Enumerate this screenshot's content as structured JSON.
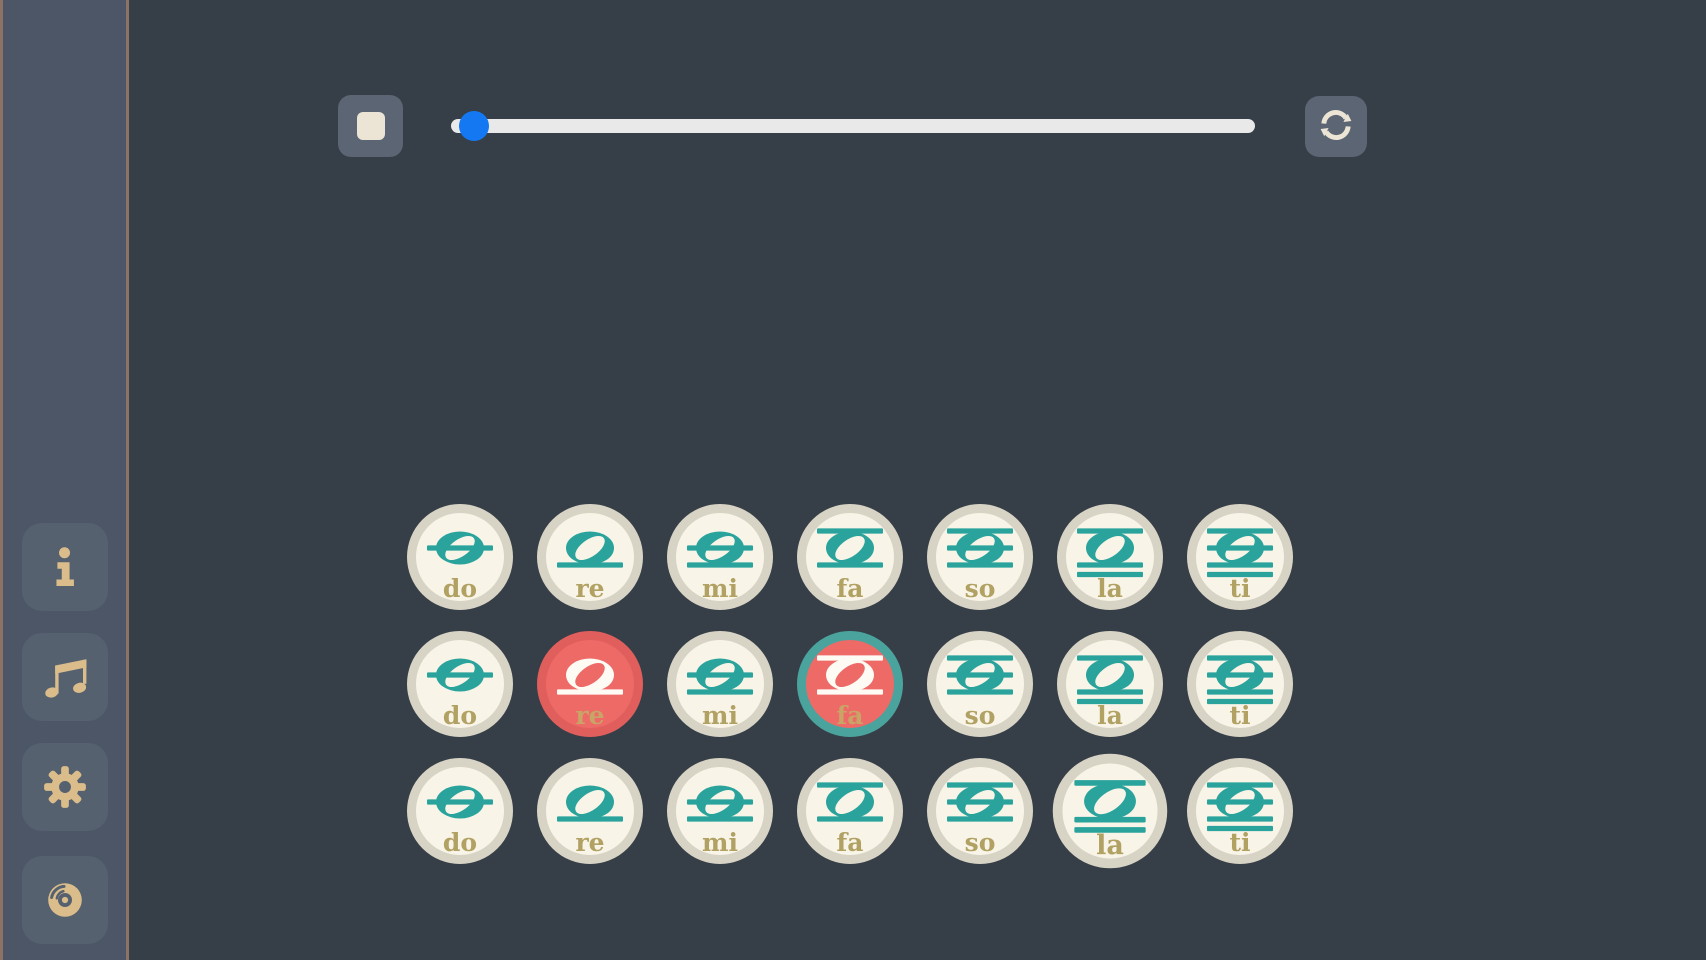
{
  "colors": {
    "background": "#363e47",
    "sidebar_background": "#4c5667",
    "sidebar_border": "#8d7365",
    "sidebar_button_background": "#56616f",
    "icon_tan": "#dabd8b",
    "transport_button_background": "#5b6573",
    "cream": "#ece4d4",
    "slider_track": "#e9e9e9",
    "slider_thumb": "#1478f2",
    "note_ring": "#d8d4c5",
    "note_fill": "#f8f4e7",
    "note_teal": "#2aa39c",
    "note_label": "#b1a163",
    "red_ring": "#e05f5d",
    "red_fill": "#ee6a67",
    "active_ring": "#4aa49d",
    "glyph_white": "#fdfbf4",
    "red_label": "#c8a566"
  },
  "sidebar": {
    "items": [
      {
        "id": "info",
        "icon": "info-icon"
      },
      {
        "id": "music",
        "icon": "music-note-icon"
      },
      {
        "id": "settings",
        "icon": "gear-icon"
      },
      {
        "id": "recording",
        "icon": "disc-icon"
      }
    ]
  },
  "transport": {
    "stop_button": {
      "icon": "stop-square-icon"
    },
    "slider": {
      "min": 0,
      "max": 100,
      "value": 1
    },
    "replay_button": {
      "icon": "refresh-icon"
    }
  },
  "solfege_staff_lines": {
    "do": [
      "center"
    ],
    "re": [
      "bottom"
    ],
    "mi": [
      "center",
      "bottom"
    ],
    "fa": [
      "top",
      "bottom"
    ],
    "so": [
      "top",
      "center",
      "bottom"
    ],
    "la": [
      "top",
      "bottom",
      "below"
    ],
    "ti": [
      "top",
      "center",
      "bottom",
      "below"
    ]
  },
  "note_grid": {
    "rows": [
      {
        "buttons": [
          {
            "syllable": "do",
            "state": "default"
          },
          {
            "syllable": "re",
            "state": "default"
          },
          {
            "syllable": "mi",
            "state": "default"
          },
          {
            "syllable": "fa",
            "state": "default"
          },
          {
            "syllable": "so",
            "state": "default"
          },
          {
            "syllable": "la",
            "state": "default"
          },
          {
            "syllable": "ti",
            "state": "default"
          }
        ]
      },
      {
        "buttons": [
          {
            "syllable": "do",
            "state": "default"
          },
          {
            "syllable": "re",
            "state": "red"
          },
          {
            "syllable": "mi",
            "state": "default"
          },
          {
            "syllable": "fa",
            "state": "red-active"
          },
          {
            "syllable": "so",
            "state": "default"
          },
          {
            "syllable": "la",
            "state": "default"
          },
          {
            "syllable": "ti",
            "state": "default"
          }
        ]
      },
      {
        "buttons": [
          {
            "syllable": "do",
            "state": "default"
          },
          {
            "syllable": "re",
            "state": "default"
          },
          {
            "syllable": "mi",
            "state": "default"
          },
          {
            "syllable": "fa",
            "state": "default"
          },
          {
            "syllable": "so",
            "state": "default"
          },
          {
            "syllable": "la",
            "state": "hover"
          },
          {
            "syllable": "ti",
            "state": "default"
          }
        ]
      }
    ]
  }
}
